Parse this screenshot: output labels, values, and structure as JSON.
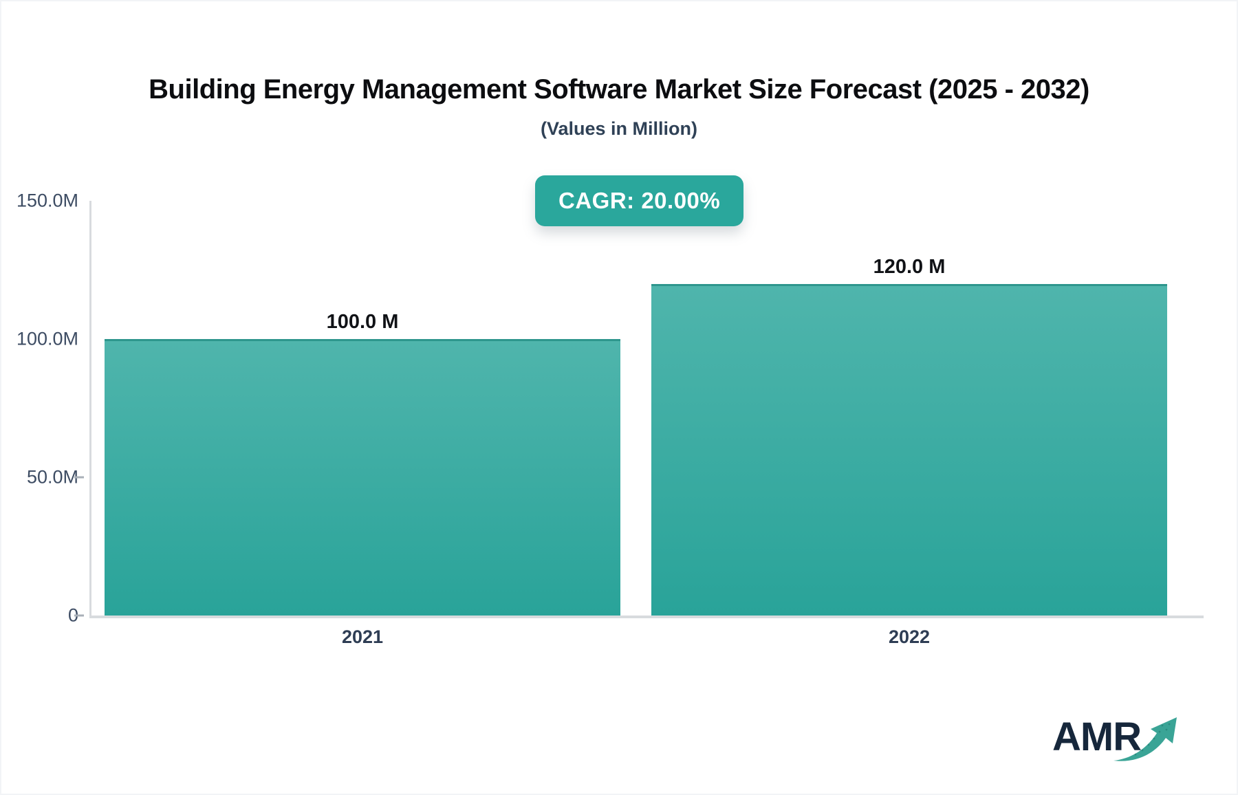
{
  "chart_data": {
    "type": "bar",
    "title": "Building Energy Management Software Market Size Forecast (2025 - 2032)",
    "subtitle": "(Values in Million)",
    "categories": [
      "2021",
      "2022"
    ],
    "values": [
      100.0,
      120.0
    ],
    "value_labels": [
      "100.0 M",
      "120.0 M"
    ],
    "unit": "Million (M)",
    "ylim": [
      0,
      150
    ],
    "yticks": [
      {
        "value": 150,
        "label": "150.0M",
        "dash": false
      },
      {
        "value": 100,
        "label": "100.0M",
        "dash": false
      },
      {
        "value": 50,
        "label": "50.0M",
        "dash": true
      },
      {
        "value": 0,
        "label": "0",
        "dash": true
      }
    ],
    "grid": false,
    "legend_position": "none",
    "bar_color_top": "#4fb5ac",
    "bar_color_bottom": "#29a399",
    "bar_edge_color": "#2e968d"
  },
  "cagr_badge": {
    "label": "CAGR: 20.00%",
    "background": "#2aa79c",
    "text_color": "#ffffff"
  },
  "axis": {
    "line_color": "#d8dbde",
    "label_color": "#3d4c63"
  },
  "logo": {
    "text": "AMR",
    "icon": "growth-arrow-icon",
    "text_color": "#16273b",
    "arrow_color": "#3aa496"
  }
}
